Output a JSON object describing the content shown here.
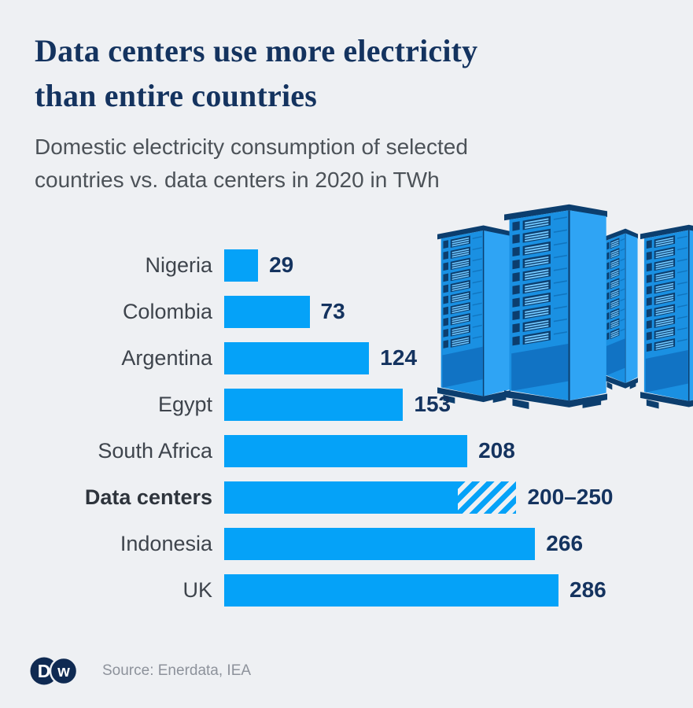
{
  "header": {
    "title": "Data centers use more electricity than entire countries",
    "title_lines": [
      "Data centers use more electricity",
      "than entire countries"
    ],
    "subtitle": "Domestic electricity consumption of selected countries vs. data centers in 2020 in TWh",
    "subtitle_lines": [
      "Domestic electricity consumption of selected",
      "countries vs. data centers in 2020 in TWh"
    ]
  },
  "chart_data": {
    "type": "bar",
    "orientation": "horizontal",
    "title": "Data centers use more electricity than entire countries",
    "subtitle": "Domestic electricity consumption of selected countries vs. data centers in 2020 in TWh",
    "unit": "TWh",
    "xlim": [
      0,
      286
    ],
    "grid": false,
    "legend": false,
    "items": [
      {
        "label": "Nigeria",
        "value": 29,
        "display": "29"
      },
      {
        "label": "Colombia",
        "value": 73,
        "display": "73"
      },
      {
        "label": "Argentina",
        "value": 124,
        "display": "124"
      },
      {
        "label": "Egypt",
        "value": 153,
        "display": "153"
      },
      {
        "label": "South Africa",
        "value": 208,
        "display": "208"
      },
      {
        "label": "Data centers",
        "value_min": 200,
        "value_max": 250,
        "display": "200–250",
        "bold": true,
        "hatched": true
      },
      {
        "label": "Indonesia",
        "value": 266,
        "display": "266"
      },
      {
        "label": "UK",
        "value": 286,
        "display": "286"
      }
    ]
  },
  "illustration": {
    "name": "server-racks",
    "front_color": "#1a90e2",
    "side_color": "#2fa4f4",
    "detail_color": "#0c3e6e",
    "panel_color": "#1173c4"
  },
  "footer": {
    "logo": "DW",
    "logo_d": "D",
    "logo_w": "w",
    "source": "Source: Enerdata, IEA"
  },
  "colors": {
    "background": "#eef0f3",
    "bar": "#05a2f8",
    "title": "#14335f",
    "value": "#14335f",
    "label": "#3e444c",
    "subtitle": "#4c5258",
    "source": "#8d929b",
    "logo": "#0f2a52"
  }
}
